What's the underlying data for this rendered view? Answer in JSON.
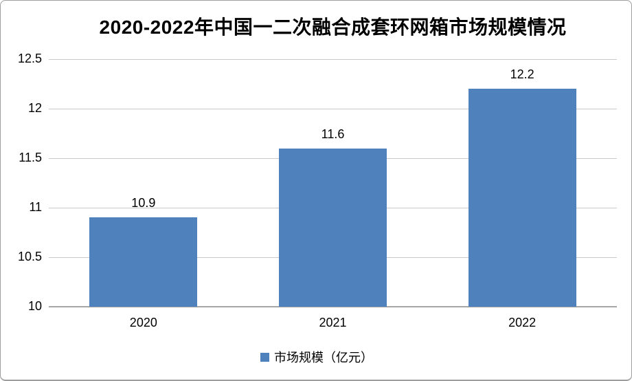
{
  "chart_data": {
    "type": "bar",
    "title": "2020-2022年中国一二次融合成套环网箱市场规模情况",
    "categories": [
      "2020",
      "2021",
      "2022"
    ],
    "series": [
      {
        "name": "市场规模（亿元）",
        "values": [
          10.9,
          11.6,
          12.2
        ]
      }
    ],
    "data_labels": [
      "10.9",
      "11.6",
      "12.2"
    ],
    "xlabel": "",
    "ylabel": "",
    "ylim": [
      10,
      12.5
    ],
    "ytick_values": [
      10,
      10.5,
      11,
      11.5,
      12,
      12.5
    ],
    "ytick_labels": [
      "10",
      "10.5",
      "11",
      "11.5",
      "12",
      "12.5"
    ],
    "grid": "horizontal-major",
    "legend_position": "bottom"
  },
  "legend": {
    "marker": "square-icon",
    "label": "市场规模（亿元）"
  },
  "colors": {
    "bar": "#4F81BD",
    "gridline": "#C9C9C9",
    "axis_line": "#A6A6A6",
    "frame_border": "#9D9D9D",
    "text": "#000000",
    "background": "#FFFFFF"
  }
}
